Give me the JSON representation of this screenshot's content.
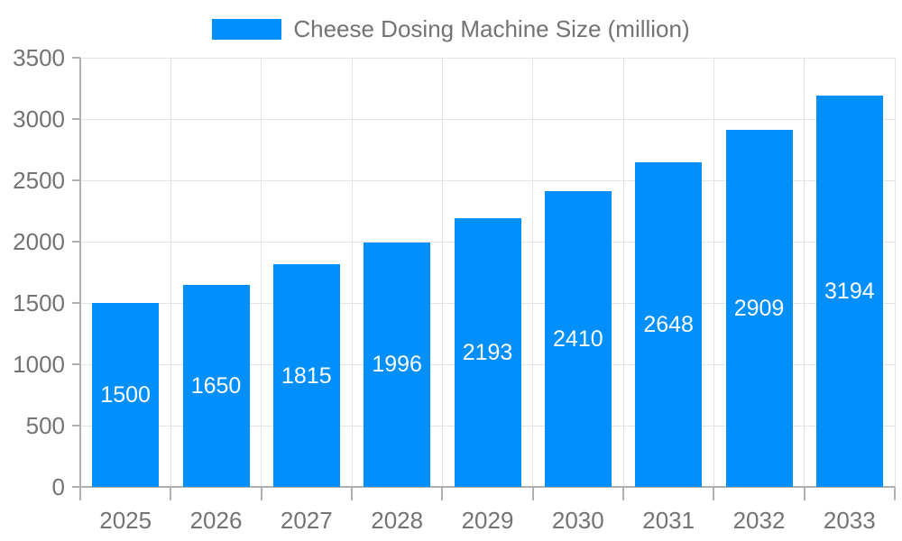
{
  "legend": {
    "label": "Cheese Dosing Machine Size (million)"
  },
  "chart_data": {
    "type": "bar",
    "title": "",
    "series_name": "Cheese Dosing Machine Size (million)",
    "categories": [
      "2025",
      "2026",
      "2027",
      "2028",
      "2029",
      "2030",
      "2031",
      "2032",
      "2033"
    ],
    "values": [
      1500,
      1650,
      1815,
      1996,
      2193,
      2410,
      2648,
      2909,
      3194
    ],
    "data_labels": [
      "1500",
      "1650",
      "1815",
      "1996",
      "2193",
      "2410",
      "2648",
      "2909",
      "3194"
    ],
    "xlabel": "",
    "ylabel": "",
    "ylim": [
      0,
      3500
    ],
    "yticks": [
      0,
      500,
      1000,
      1500,
      2000,
      2500,
      3000,
      3500
    ],
    "grid": true,
    "legend_position": "top",
    "bar_color": "#008FFB",
    "data_label_color": "#ffffff",
    "axis_text_color": "#737373",
    "axis_line_color": "#b0b0b0",
    "grid_color": "#e3e3e3"
  }
}
